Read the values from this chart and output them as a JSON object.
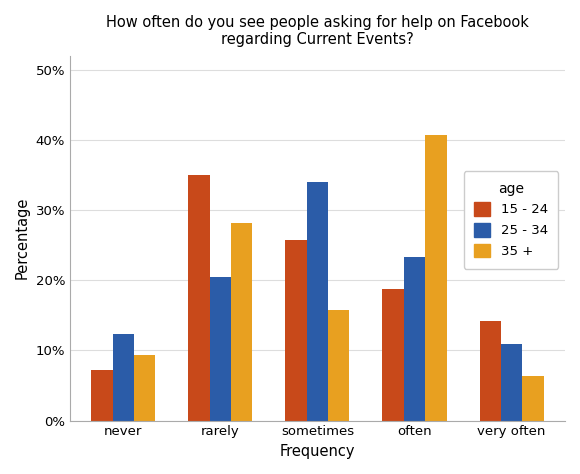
{
  "title": "How often do you see people asking for help on Facebook\nregarding Current Events?",
  "xlabel": "Frequency",
  "ylabel": "Percentage",
  "categories": [
    "never",
    "rarely",
    "sometimes",
    "often",
    "very often"
  ],
  "legend_title": "age",
  "groups": [
    "15 - 24",
    "25 - 34",
    "35 +"
  ],
  "colors": [
    "#C8491A",
    "#2B5CA8",
    "#E8A020"
  ],
  "values": {
    "15 - 24": [
      7.2,
      35.0,
      25.7,
      18.8,
      14.2
    ],
    "25 - 34": [
      12.3,
      20.5,
      34.0,
      23.3,
      10.9
    ],
    "35 +": [
      9.4,
      28.2,
      15.8,
      40.7,
      6.4
    ]
  },
  "ylim": [
    0,
    52
  ],
  "yticks": [
    0,
    10,
    20,
    30,
    40,
    50
  ],
  "ytick_labels": [
    "0%",
    "10%",
    "20%",
    "30%",
    "40%",
    "50%"
  ],
  "background_color": "#FFFFFF",
  "plot_bg_color": "#FFFFFF",
  "grid_color": "#DDDDDD",
  "title_fontsize": 10.5,
  "axis_label_fontsize": 10.5,
  "tick_fontsize": 9.5,
  "legend_fontsize": 9.5,
  "bar_width": 0.22,
  "figsize": [
    5.8,
    4.74
  ]
}
